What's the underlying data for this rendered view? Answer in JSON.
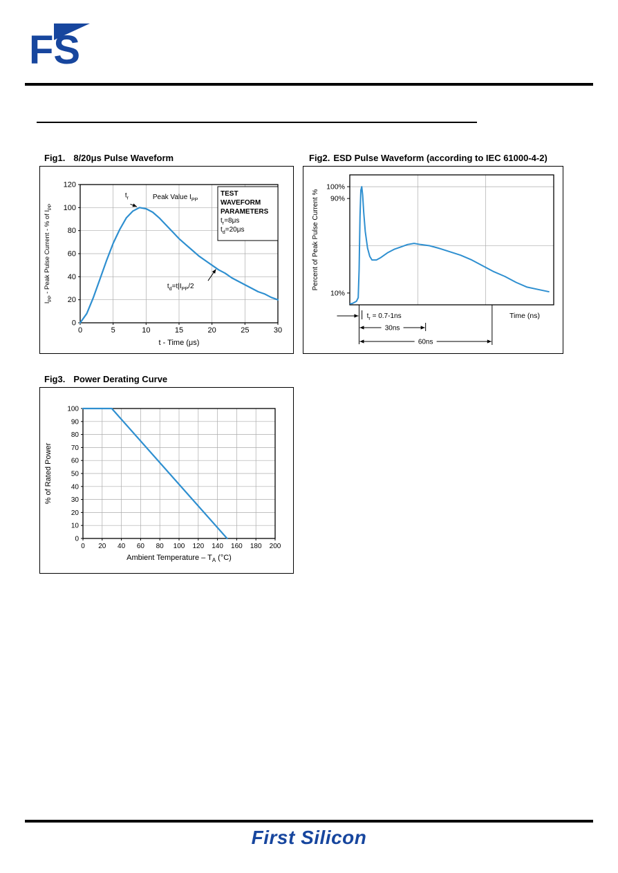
{
  "header": {
    "logo_text": "FS"
  },
  "footer": {
    "brand": "First Silicon"
  },
  "figures": [
    {
      "label": "Fig1.",
      "title": "8/20μs Pulse Waveform"
    },
    {
      "label": "Fig2.",
      "title": "ESD Pulse Waveform (according to IEC 61000-4-2)"
    },
    {
      "label": "Fig3.",
      "title": "Power Derating Curve"
    }
  ],
  "colors": {
    "curve": "#2e8fd0",
    "grid": "#ababab",
    "brand_blue": "#17469e",
    "axis": "#000000"
  },
  "chart_data": [
    {
      "id": "fig1",
      "type": "line",
      "title": "8/20μs Pulse Waveform",
      "xlabel": "t - Time (μs)",
      "ylabel": "I_{PP} - Peak Pulse Current - % of I_{PP}",
      "xlim": [
        0,
        30
      ],
      "ylim": [
        0,
        120
      ],
      "xticks": [
        0,
        5,
        10,
        15,
        20,
        25,
        30
      ],
      "yticks": [
        0,
        20,
        40,
        60,
        80,
        100,
        120
      ],
      "grid": true,
      "series": [
        {
          "name": "8/20μs surge pulse",
          "x": [
            0,
            1,
            2,
            3,
            4,
            5,
            6,
            7,
            8,
            9,
            10,
            11,
            12,
            13,
            14,
            15,
            16,
            17,
            18,
            19,
            20,
            21,
            22,
            23,
            24,
            25,
            26,
            27,
            28,
            29,
            30
          ],
          "y": [
            0,
            8,
            22,
            38,
            54,
            69,
            81,
            91,
            97,
            100,
            99,
            96,
            91,
            85,
            79,
            73,
            68,
            63,
            58,
            54,
            50,
            46,
            43,
            39,
            36,
            33,
            30,
            27,
            25,
            22,
            20
          ]
        }
      ],
      "annotations": [
        {
          "text": "t_{r}",
          "x": 6.8,
          "y": 109,
          "arrow": [
            7.6,
            103,
            8.6,
            100.8
          ]
        },
        {
          "text": "Peak Value I_{PP}",
          "x": 11,
          "y": 107.5
        },
        {
          "text": "t_{d}=t|I_{PP}/2",
          "x": 13.2,
          "y": 30,
          "arrow": [
            19.4,
            36.5,
            20.6,
            46.5
          ]
        }
      ],
      "info_box": {
        "lines": [
          "TEST",
          "WAVEFORM",
          "PARAMETERS",
          "t_{r}=8μs",
          "t_{d}=20μs"
        ],
        "bold_count": 3
      }
    },
    {
      "id": "fig2",
      "type": "line",
      "title": "ESD Pulse Waveform (according to IEC 61000-4-2)",
      "xlabel": "Time (ns)",
      "ylabel": "Percent of Peak Pulse Current %",
      "xlim": [
        0,
        92
      ],
      "ylim": [
        0,
        110
      ],
      "ytick_values": [
        100,
        90,
        10
      ],
      "ytick_labels": [
        "100%",
        "90%",
        "10%"
      ],
      "grid": true,
      "series": [
        {
          "name": "ESD pulse (IEC 61000-4-2)",
          "x": [
            0,
            1,
            2,
            3,
            3.8,
            4.2,
            4.6,
            5,
            5.4,
            5.8,
            6.3,
            7,
            8,
            9,
            10,
            12,
            14,
            17,
            20,
            23,
            26,
            29,
            32,
            36,
            40,
            45,
            50,
            55,
            60,
            65,
            70,
            75,
            80,
            85,
            90
          ],
          "y": [
            1,
            1,
            2,
            3,
            6,
            30,
            75,
            97,
            100,
            93,
            78,
            62,
            48,
            41,
            38,
            38,
            40,
            44,
            47,
            49,
            51,
            52,
            51,
            50,
            48,
            45,
            42,
            38,
            33,
            28,
            24,
            19,
            15,
            13,
            11
          ]
        }
      ],
      "timing": {
        "rise_label": "t_{r} = 0.7-1ns",
        "rise_start_ns": 4.2,
        "rise_end_ns": 5.5,
        "spans": [
          {
            "label": "30ns",
            "ns": 30
          },
          {
            "label": "60ns",
            "ns": 60
          }
        ]
      }
    },
    {
      "id": "fig3",
      "type": "line",
      "title": "Power Derating Curve",
      "xlabel": "Ambient Temperature – T_{A} (°C)",
      "ylabel": "% of Rated Power",
      "xlim": [
        0,
        200
      ],
      "ylim": [
        0,
        100
      ],
      "xticks": [
        0,
        20,
        40,
        60,
        80,
        100,
        120,
        140,
        160,
        180,
        200
      ],
      "yticks": [
        0,
        10,
        20,
        30,
        40,
        50,
        60,
        70,
        80,
        90,
        100
      ],
      "grid": true,
      "series": [
        {
          "name": "power derating",
          "x": [
            0,
            30,
            150
          ],
          "y": [
            100,
            100,
            0
          ]
        }
      ]
    }
  ]
}
